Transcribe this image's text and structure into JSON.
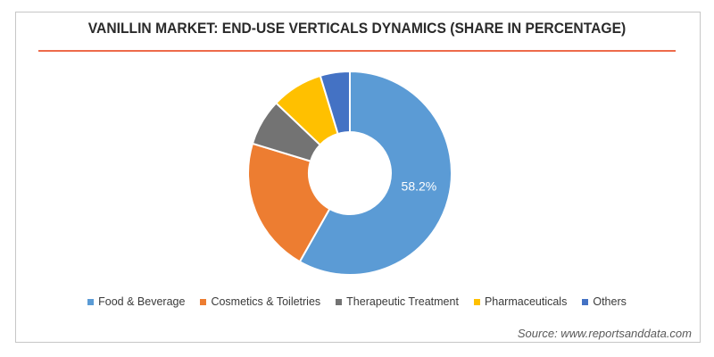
{
  "page": {
    "frame_border_color": "#c6c6c6",
    "background_color": "#ffffff"
  },
  "header": {
    "divider_color": "#ED6B4B",
    "title_color": "#2a2a2a"
  },
  "source": {
    "text": "Source: www.reportsanddata.com"
  },
  "chart_data": {
    "type": "pie",
    "subtype": "donut",
    "title": "VANILLIN MARKET: END-USE VERTICALS DYNAMICS (SHARE IN PERCENTAGE)",
    "unit": "percent",
    "donut_hole_ratio": 0.4,
    "start_angle_deg": 0,
    "direction": "clockwise",
    "legend_position": "bottom",
    "separator_color": "#ffffff",
    "series": [
      {
        "name": "Food & Beverage",
        "value": 58.2,
        "color": "#5B9BD5",
        "data_label": "58.2%"
      },
      {
        "name": "Cosmetics & Toiletries",
        "value": 21.5,
        "color": "#ED7D31",
        "data_label": ""
      },
      {
        "name": "Therapeutic Treatment",
        "value": 7.4,
        "color": "#737373",
        "data_label": ""
      },
      {
        "name": "Pharmaceuticals",
        "value": 8.2,
        "color": "#FFC000",
        "data_label": ""
      },
      {
        "name": "Others",
        "value": 4.7,
        "color": "#4472C4",
        "data_label": ""
      }
    ]
  }
}
